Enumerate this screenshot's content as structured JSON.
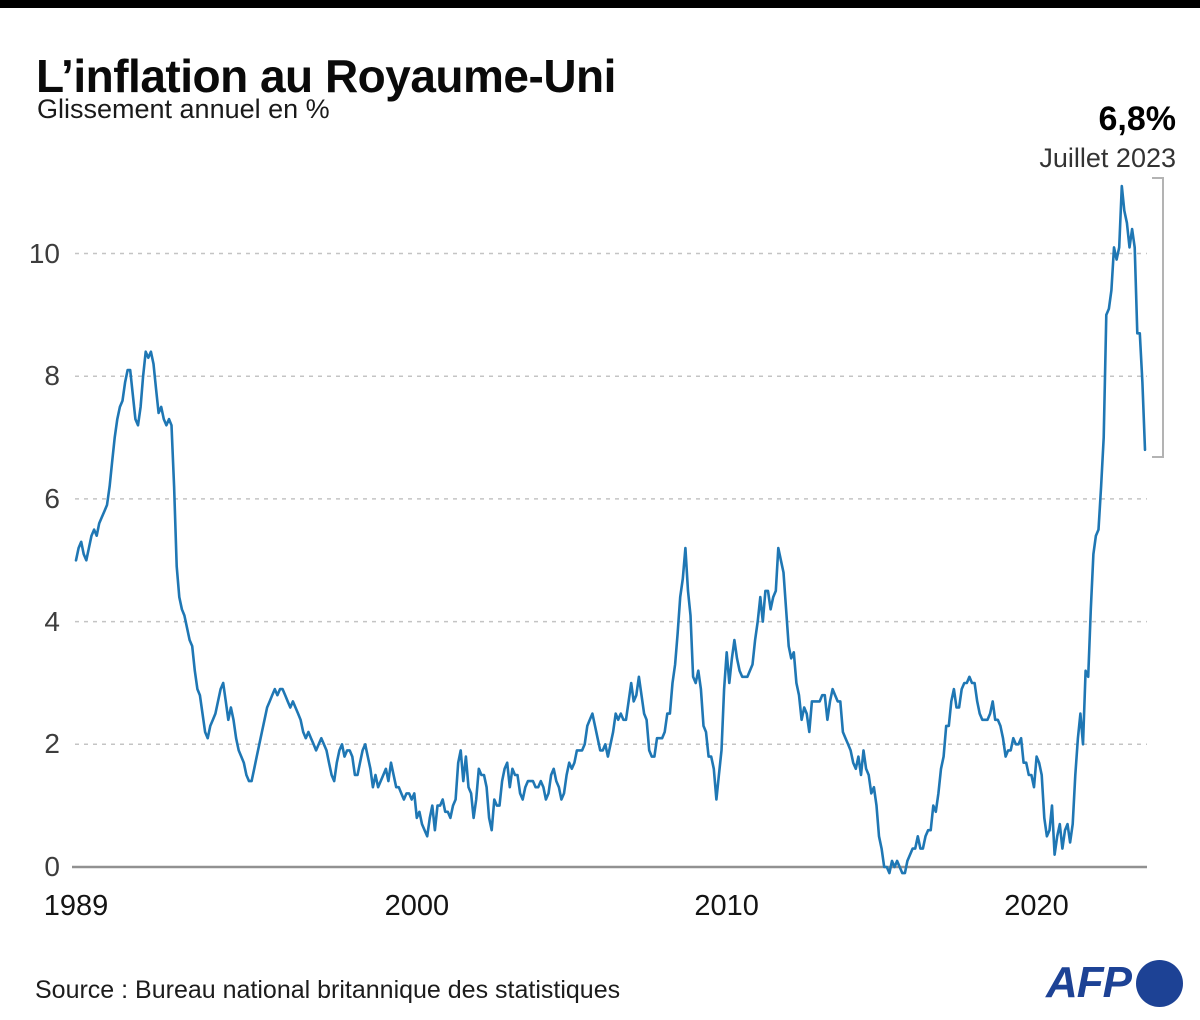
{
  "header": {
    "title": "L’inflation au Royaume-Uni",
    "subtitle": "Glissement annuel en %"
  },
  "annotation": {
    "value": "6,8%",
    "date": "Juillet 2023"
  },
  "footer": {
    "source": "Source : Bureau national britannique des statistiques",
    "logo_text": "AFP"
  },
  "colors": {
    "line": "#1f77b4",
    "logo_blue": "#1d4295",
    "grid": "#c4c4c4",
    "baseline": "#919191",
    "bracket": "#b3b3b3",
    "top_bar": "#000000"
  },
  "chart_data": {
    "type": "line",
    "title": "L’inflation au Royaume-Uni",
    "ylabel": "Glissement annuel en %",
    "frequency": "monthly",
    "x_start": {
      "year": 1989,
      "month": 1
    },
    "x_end": {
      "year": 2023,
      "month": 7
    },
    "x_ticks": [
      1989,
      2000,
      2010,
      2020
    ],
    "y_ticks": [
      0,
      2,
      4,
      6,
      8,
      10
    ],
    "ylim": [
      -0.3,
      11.5
    ],
    "grid": "dashed-horizontal",
    "last_point": {
      "label": "Juillet 2023",
      "value": 6.8
    },
    "values": [
      5.0,
      5.2,
      5.3,
      5.1,
      5.0,
      5.2,
      5.4,
      5.5,
      5.4,
      5.6,
      5.7,
      5.8,
      5.9,
      6.2,
      6.6,
      7.0,
      7.3,
      7.5,
      7.6,
      7.9,
      8.1,
      8.1,
      7.7,
      7.3,
      7.2,
      7.5,
      8.0,
      8.4,
      8.3,
      8.4,
      8.2,
      7.8,
      7.4,
      7.5,
      7.3,
      7.2,
      7.3,
      7.2,
      6.2,
      4.9,
      4.4,
      4.2,
      4.1,
      3.9,
      3.7,
      3.6,
      3.2,
      2.9,
      2.8,
      2.5,
      2.2,
      2.1,
      2.3,
      2.4,
      2.5,
      2.7,
      2.9,
      3.0,
      2.7,
      2.4,
      2.6,
      2.4,
      2.1,
      1.9,
      1.8,
      1.7,
      1.5,
      1.4,
      1.4,
      1.6,
      1.8,
      2.0,
      2.2,
      2.4,
      2.6,
      2.7,
      2.8,
      2.9,
      2.8,
      2.9,
      2.9,
      2.8,
      2.7,
      2.6,
      2.7,
      2.6,
      2.5,
      2.4,
      2.2,
      2.1,
      2.2,
      2.1,
      2.0,
      1.9,
      2.0,
      2.1,
      2.0,
      1.9,
      1.7,
      1.5,
      1.4,
      1.7,
      1.9,
      2.0,
      1.8,
      1.9,
      1.9,
      1.8,
      1.5,
      1.5,
      1.7,
      1.9,
      2.0,
      1.8,
      1.6,
      1.3,
      1.5,
      1.3,
      1.4,
      1.5,
      1.6,
      1.4,
      1.7,
      1.5,
      1.3,
      1.3,
      1.2,
      1.1,
      1.2,
      1.2,
      1.1,
      1.2,
      0.8,
      0.9,
      0.7,
      0.6,
      0.5,
      0.8,
      1.0,
      0.6,
      1.0,
      1.0,
      1.1,
      0.9,
      0.9,
      0.8,
      1.0,
      1.1,
      1.7,
      1.9,
      1.4,
      1.8,
      1.3,
      1.2,
      0.8,
      1.1,
      1.6,
      1.5,
      1.5,
      1.3,
      0.8,
      0.6,
      1.1,
      1.0,
      1.0,
      1.4,
      1.6,
      1.7,
      1.3,
      1.6,
      1.5,
      1.5,
      1.2,
      1.1,
      1.3,
      1.4,
      1.4,
      1.4,
      1.3,
      1.3,
      1.4,
      1.3,
      1.1,
      1.2,
      1.5,
      1.6,
      1.4,
      1.3,
      1.1,
      1.2,
      1.5,
      1.7,
      1.6,
      1.7,
      1.9,
      1.9,
      1.9,
      2.0,
      2.3,
      2.4,
      2.5,
      2.3,
      2.1,
      1.9,
      1.9,
      2.0,
      1.8,
      2.0,
      2.2,
      2.5,
      2.4,
      2.5,
      2.4,
      2.4,
      2.7,
      3.0,
      2.7,
      2.8,
      3.1,
      2.8,
      2.5,
      2.4,
      1.9,
      1.8,
      1.8,
      2.1,
      2.1,
      2.1,
      2.2,
      2.5,
      2.5,
      3.0,
      3.3,
      3.8,
      4.4,
      4.7,
      5.2,
      4.5,
      4.1,
      3.1,
      3.0,
      3.2,
      2.9,
      2.3,
      2.2,
      1.8,
      1.8,
      1.6,
      1.1,
      1.5,
      1.9,
      2.9,
      3.5,
      3.0,
      3.4,
      3.7,
      3.4,
      3.2,
      3.1,
      3.1,
      3.1,
      3.2,
      3.3,
      3.7,
      4.0,
      4.4,
      4.0,
      4.5,
      4.5,
      4.2,
      4.4,
      4.5,
      5.2,
      5.0,
      4.8,
      4.2,
      3.6,
      3.4,
      3.5,
      3.0,
      2.8,
      2.4,
      2.6,
      2.5,
      2.2,
      2.7,
      2.7,
      2.7,
      2.7,
      2.8,
      2.8,
      2.4,
      2.7,
      2.9,
      2.8,
      2.7,
      2.7,
      2.2,
      2.1,
      2.0,
      1.9,
      1.7,
      1.6,
      1.8,
      1.5,
      1.9,
      1.6,
      1.5,
      1.2,
      1.3,
      1.0,
      0.5,
      0.3,
      0.0,
      0.0,
      -0.1,
      0.1,
      0.0,
      0.1,
      0.0,
      -0.1,
      -0.1,
      0.1,
      0.2,
      0.3,
      0.3,
      0.5,
      0.3,
      0.3,
      0.5,
      0.6,
      0.6,
      1.0,
      0.9,
      1.2,
      1.6,
      1.8,
      2.3,
      2.3,
      2.7,
      2.9,
      2.6,
      2.6,
      2.9,
      3.0,
      3.0,
      3.1,
      3.0,
      3.0,
      2.7,
      2.5,
      2.4,
      2.4,
      2.4,
      2.5,
      2.7,
      2.4,
      2.4,
      2.3,
      2.1,
      1.8,
      1.9,
      1.9,
      2.1,
      2.0,
      2.0,
      2.1,
      1.7,
      1.7,
      1.5,
      1.5,
      1.3,
      1.8,
      1.7,
      1.5,
      0.8,
      0.5,
      0.6,
      1.0,
      0.2,
      0.5,
      0.7,
      0.3,
      0.6,
      0.7,
      0.4,
      0.7,
      1.5,
      2.1,
      2.5,
      2.0,
      3.2,
      3.1,
      4.2,
      5.1,
      5.4,
      5.5,
      6.2,
      7.0,
      9.0,
      9.1,
      9.4,
      10.1,
      9.9,
      10.1,
      11.1,
      10.7,
      10.5,
      10.1,
      10.4,
      10.1,
      8.7,
      8.7,
      7.9,
      6.8
    ]
  }
}
